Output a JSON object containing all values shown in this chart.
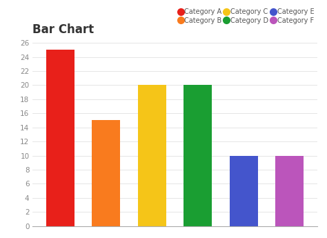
{
  "title": "Bar Chart",
  "categories": [
    "Category A",
    "Category B",
    "Category C",
    "Category D",
    "Category E",
    "Category F"
  ],
  "values": [
    25,
    15,
    20,
    20,
    10,
    10
  ],
  "bar_colors": [
    "#e8201a",
    "#f97b1e",
    "#f5c518",
    "#1a9e32",
    "#4455cc",
    "#bb55bb"
  ],
  "legend_colors": [
    "#e8201a",
    "#f97b1e",
    "#f5c518",
    "#1a9e32",
    "#4455cc",
    "#bb55bb"
  ],
  "ylim": [
    0,
    26
  ],
  "yticks": [
    0,
    2,
    4,
    6,
    8,
    10,
    12,
    14,
    16,
    18,
    20,
    22,
    24,
    26
  ],
  "background_color": "#ffffff",
  "title_fontsize": 12,
  "title_color": "#333333",
  "bar_width": 0.62,
  "legend_ncol": 3,
  "tick_color": "#aaaaaa",
  "grid_color": "#e0e0e0"
}
